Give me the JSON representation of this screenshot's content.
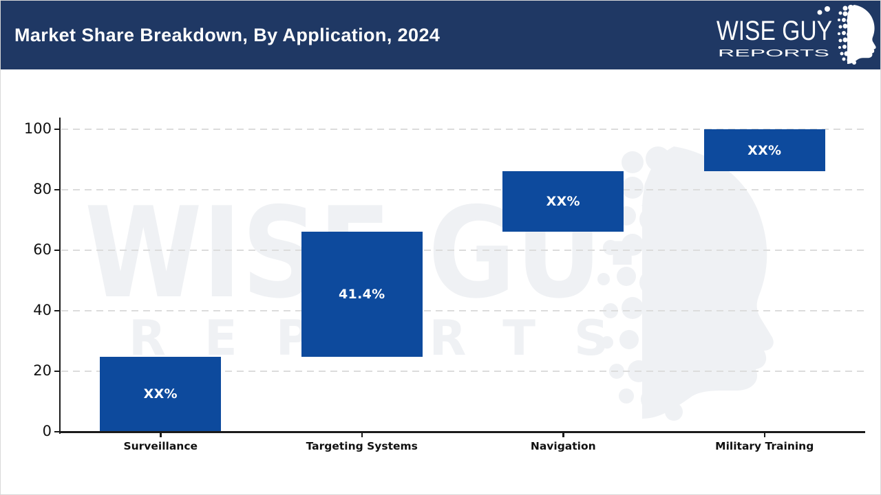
{
  "header": {
    "title": "Market Share Breakdown, By Application, 2024",
    "logo": {
      "wordmark": "WISE GUY",
      "subtext": "REPORTS"
    }
  },
  "watermark": {
    "wordmark": "WISE GU·Y",
    "subtext": "REPORTS"
  },
  "chart_data": {
    "type": "bar",
    "subtype": "floating-waterfall",
    "title": "Market Share Breakdown, By Application, 2024",
    "categories": [
      "Surveillance",
      "Targeting Systems",
      "Navigation",
      "Military Training"
    ],
    "segments": [
      {
        "category": "Surveillance",
        "start": 0,
        "end": 24.8,
        "value_label": "XX%"
      },
      {
        "category": "Targeting Systems",
        "start": 24.8,
        "end": 66.2,
        "value_label": "41.4%"
      },
      {
        "category": "Navigation",
        "start": 66.2,
        "end": 86.1,
        "value_label": "XX%"
      },
      {
        "category": "Military Training",
        "start": 86.1,
        "end": 100,
        "value_label": "XX%"
      }
    ],
    "xlabel": "",
    "ylabel": "",
    "ylim": [
      0,
      100
    ],
    "yticks": [
      0,
      20,
      40,
      60,
      80,
      100
    ],
    "grid": "horizontal-dashed",
    "legend": "none",
    "bar_color": "#0d4a9d",
    "bar_label_color": "#ffffff"
  },
  "colors": {
    "header_bg": "#1f3864",
    "bar": "#0d4a9d",
    "axis": "#1a1a1a",
    "grid": "#dcdcdc",
    "watermark": "#eff1f4",
    "page_border": "#d8d8d8",
    "title_text": "#ffffff"
  }
}
